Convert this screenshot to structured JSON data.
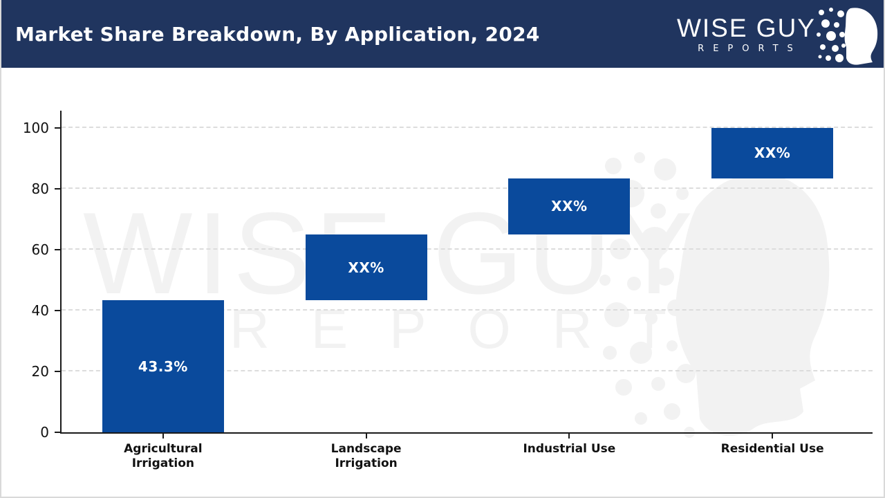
{
  "header": {
    "title": "Market Share Breakdown, By Application, 2024",
    "bg_color": "#20355f",
    "logo": {
      "line1": "WISE GUY",
      "line2": "REPORTS"
    }
  },
  "watermark": {
    "line1": "WISE GUY",
    "line2": "REPORTS"
  },
  "chart_data": {
    "type": "bar",
    "subtype": "waterfall",
    "title": "Market Share Breakdown, By Application, 2024",
    "xlabel": "",
    "ylabel": "",
    "categories": [
      "Agricultural\nIrrigation",
      "Landscape\nIrrigation",
      "Industrial Use",
      "Residential Use"
    ],
    "segments": [
      {
        "start": 0,
        "end": 43.3,
        "value": 43.3,
        "label": "43.3%"
      },
      {
        "start": 43.3,
        "end": 65.0,
        "value": 21.7,
        "label": "XX%"
      },
      {
        "start": 65.0,
        "end": 83.5,
        "value": 18.5,
        "label": "XX%"
      },
      {
        "start": 83.5,
        "end": 100.0,
        "value": 16.5,
        "label": "XX%"
      }
    ],
    "yticks": [
      "0",
      "20",
      "40",
      "60",
      "80",
      "100"
    ],
    "ytick_values": [
      0,
      20,
      40,
      60,
      80,
      100
    ],
    "ylim": [
      0,
      106
    ],
    "grid": "horizontal-dashed",
    "legend": "none",
    "bar_color": "#0a4a9c",
    "bar_label_color": "#ffffff"
  }
}
